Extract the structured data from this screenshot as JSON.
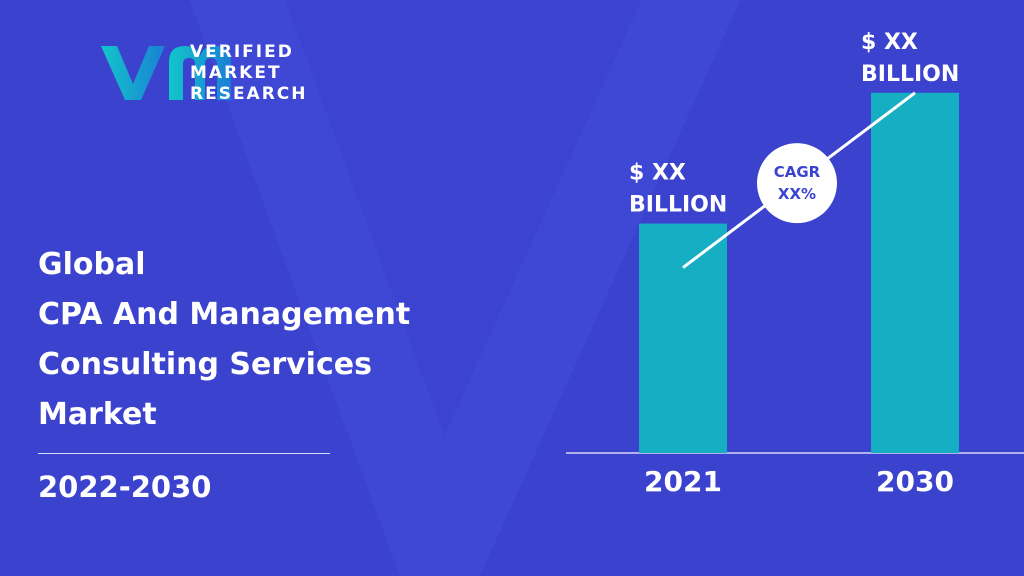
{
  "brand": {
    "name_lines": [
      "VERIFIED",
      "MARKET",
      "RESEARCH"
    ],
    "colors": {
      "logo_gradient_start": "#12c6c9",
      "logo_gradient_end": "#1a7fd6"
    }
  },
  "report": {
    "title_lines": [
      "Global",
      "CPA And Management",
      "Consulting Services",
      "Market"
    ],
    "period": "2022-2030"
  },
  "colors": {
    "background": "#3b43d0",
    "bar": "#16aec3",
    "text": "#ffffff",
    "cagr_text": "#3b43d0"
  },
  "chart_data": {
    "type": "bar",
    "categories": [
      "2021",
      "2030"
    ],
    "values": [
      1,
      1.57
    ],
    "value_labels": [
      [
        "$ XX",
        "BILLION"
      ],
      [
        "$ XX",
        "BILLION"
      ]
    ],
    "annotation": [
      "CAGR",
      "XX%"
    ],
    "title": "",
    "xlabel": "",
    "ylabel": "",
    "ylim": [
      0,
      1.8
    ],
    "grid": false
  }
}
